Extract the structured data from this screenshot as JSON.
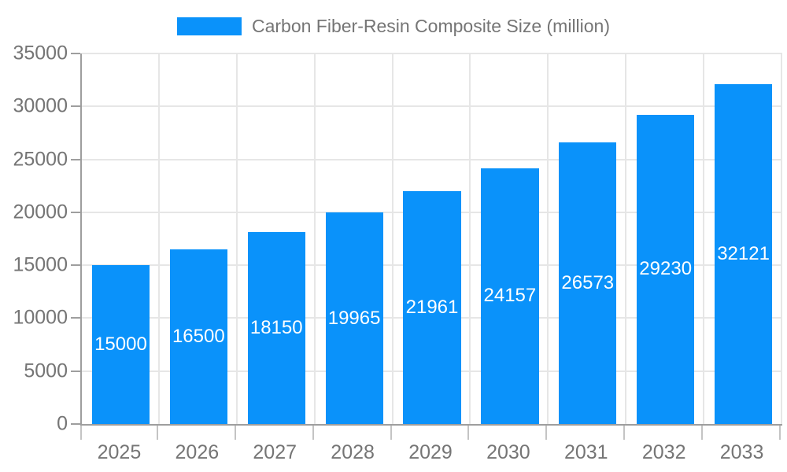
{
  "colors": {
    "bar": "#0A92FA",
    "grid": "#E6E6E6",
    "axis": "#9E9E9E",
    "tick": "#C4C4C4",
    "text": "#757575",
    "bar_label": "#FFFFFF",
    "background": "#FFFFFF"
  },
  "legend": {
    "label": "Carbon Fiber-Resin Composite Size (million)"
  },
  "chart_data": {
    "type": "bar",
    "title": "Carbon Fiber-Resin Composite Size (million)",
    "categories": [
      "2025",
      "2026",
      "2027",
      "2028",
      "2029",
      "2030",
      "2031",
      "2032",
      "2033"
    ],
    "values": [
      15000,
      16500,
      18150,
      19965,
      21961,
      24157,
      26573,
      29230,
      32121
    ],
    "series": [
      {
        "name": "Carbon Fiber-Resin Composite Size (million)",
        "values": [
          15000,
          16500,
          18150,
          19965,
          21961,
          24157,
          26573,
          29230,
          32121
        ]
      }
    ],
    "xlabel": "",
    "ylabel": "",
    "ylim": [
      0,
      35000
    ],
    "ytick_step": 5000,
    "yticks": [
      0,
      5000,
      10000,
      15000,
      20000,
      25000,
      30000,
      35000
    ],
    "grid": true,
    "legend_position": "top-center",
    "bar_label_position": "inside-center"
  }
}
